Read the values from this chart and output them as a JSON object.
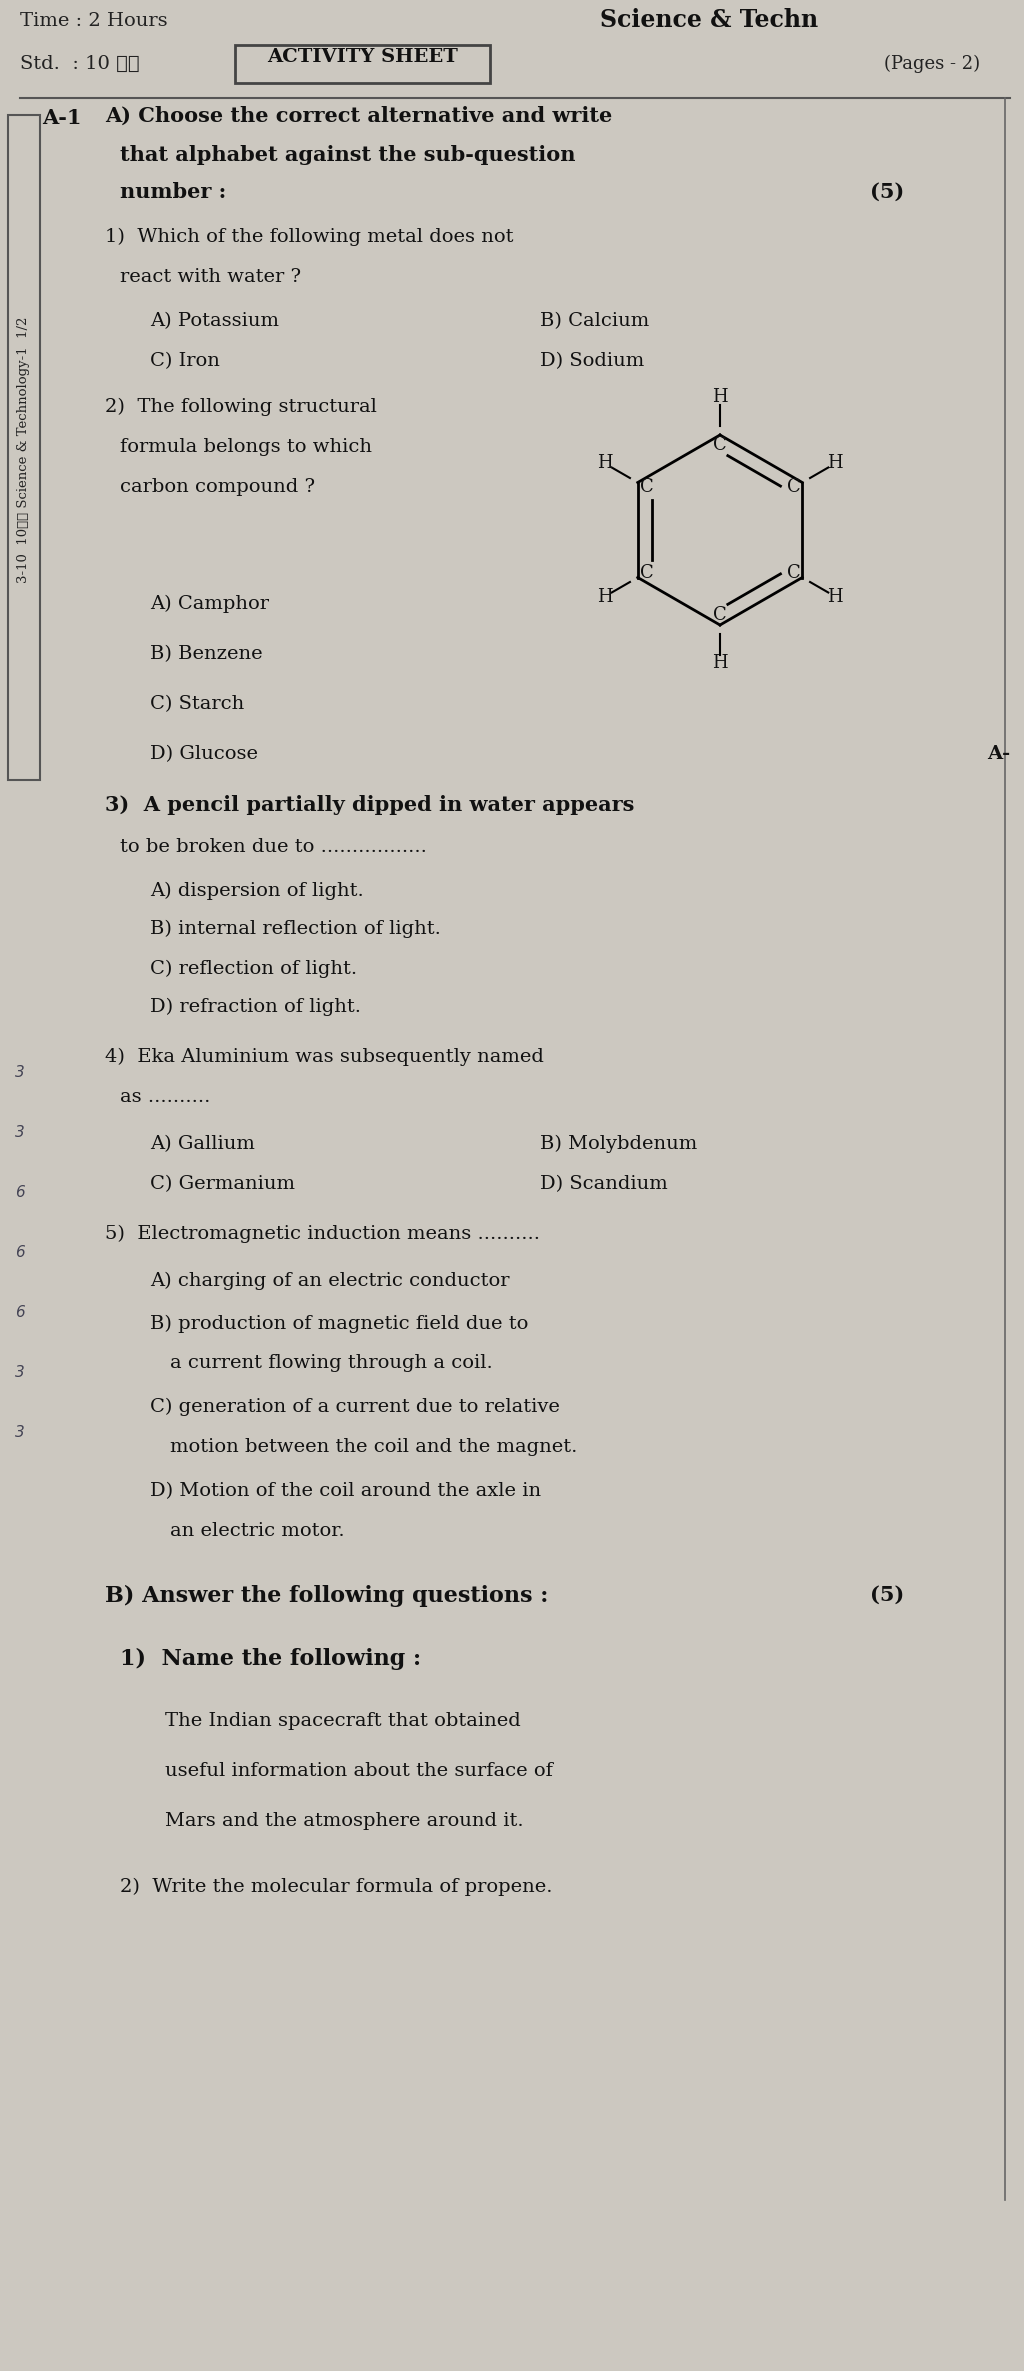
{
  "bg_color": "#ccc8c0",
  "text_color": "#1a1a1a",
  "header_time": "Time : 2 Hours",
  "header_subject": "Science & Techn",
  "header_std": "Std.  : 10 वी",
  "header_activity": "ACTIVITY SHEET",
  "header_pages": "(Pages - 2)",
  "sidebar_text": "3-10  10वी Science & Technology-1  1/2",
  "right_label": "A-"
}
